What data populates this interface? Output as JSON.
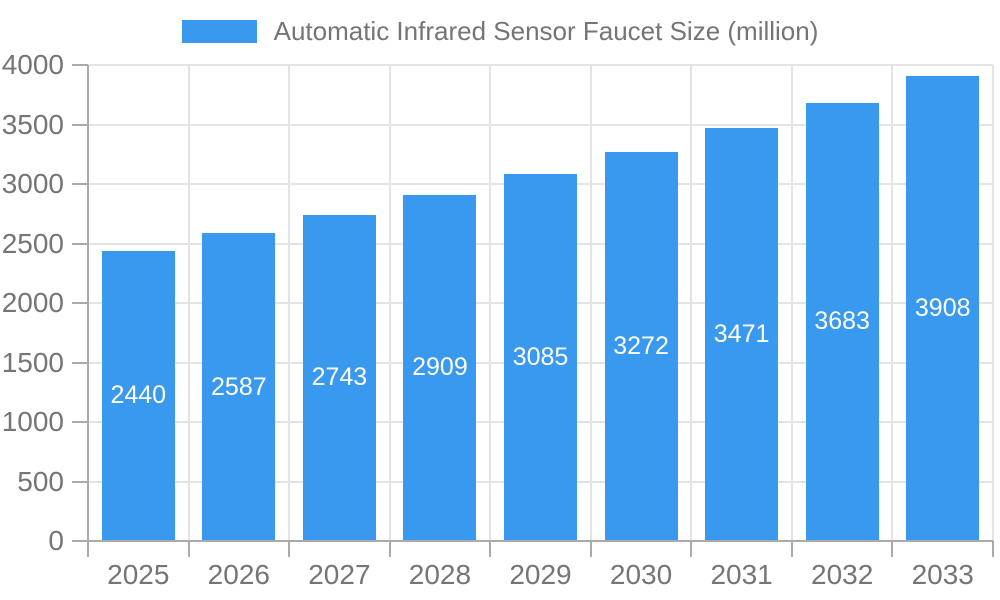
{
  "legend": {
    "label": "Automatic Infrared Sensor Faucet Size (million)"
  },
  "colors": {
    "bar": "#3999ee",
    "grid": "#e4e4e4",
    "axis": "#aaaaaa",
    "tick_label": "#757575",
    "value_text": "#ffffff",
    "background": "#ffffff"
  },
  "chart_data": {
    "type": "bar",
    "title": "Automatic Infrared Sensor Faucet Size (million)",
    "categories": [
      "2025",
      "2026",
      "2027",
      "2028",
      "2029",
      "2030",
      "2031",
      "2032",
      "2033"
    ],
    "values": [
      2440,
      2587,
      2743,
      2909,
      3085,
      3272,
      3471,
      3683,
      3908
    ],
    "value_labels": [
      "2440",
      "2587",
      "2743",
      "2909",
      "3085",
      "3272",
      "3471",
      "3683",
      "3908"
    ],
    "xlabel": "",
    "ylabel": "",
    "ylim": [
      0,
      4000
    ],
    "ytick_interval": 500,
    "ytick_labels": [
      "0",
      "500",
      "1000",
      "1500",
      "2000",
      "2500",
      "3000",
      "3500",
      "4000"
    ],
    "grid": true,
    "legend_position": "top-center",
    "value_label_position": "center-of-bar"
  }
}
